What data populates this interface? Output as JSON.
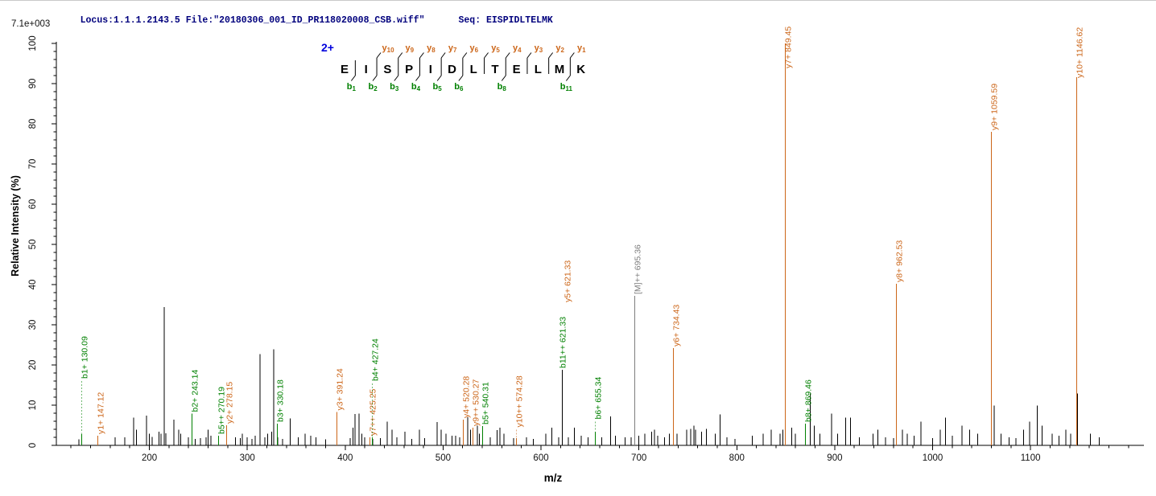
{
  "header": {
    "locus_file": "Locus:1.1.1.2143.5 File:\"20180306_001_ID_PR118020008_CSB.wiff\"",
    "seq": "Seq: EISPIDLTELMK"
  },
  "colors": {
    "y_ion": "#cc6619",
    "b_ion": "#008000",
    "precursor": "#7d7d7d",
    "background_peak": "#000000",
    "axis": "#000000",
    "header_text": "#00007d",
    "charge_label": "#0000dd"
  },
  "sequence_panel": {
    "charge": "2+",
    "residues": [
      "E",
      "I",
      "S",
      "P",
      "I",
      "D",
      "L",
      "T",
      "E",
      "L",
      "M",
      "K"
    ],
    "gaps": [
      {
        "b": "b1",
        "y": null
      },
      {
        "b": "b2",
        "y": "y10"
      },
      {
        "b": "b3",
        "y": "y9"
      },
      {
        "b": "b4",
        "y": "y8"
      },
      {
        "b": "b5",
        "y": "y7"
      },
      {
        "b": "b6",
        "y": "y6"
      },
      {
        "b": null,
        "y": "y5"
      },
      {
        "b": "b8",
        "y": "y4"
      },
      {
        "b": null,
        "y": "y3"
      },
      {
        "b": null,
        "y": "y2"
      },
      {
        "b": "b11",
        "y": "y1"
      }
    ]
  },
  "chart_data": {
    "type": "bar",
    "subtype": "tandem-MS-peptide-fragmentation-spectrum",
    "title": "",
    "xlabel": "m/z",
    "ylabel": "Relative  Intensity (%)",
    "max_intensity_label": "7.1e+003",
    "x_range": [
      105,
      1215
    ],
    "ylim": [
      0,
      100
    ],
    "x_major_ticks": [
      200,
      300,
      400,
      500,
      600,
      700,
      800,
      900,
      1000,
      1100
    ],
    "x_minor_step": 20,
    "y_major_step": 10,
    "y_minor_step": 2,
    "grid": false,
    "legend": "none",
    "labeled_peaks": [
      {
        "label": "b1+ 130.09",
        "ion": "b",
        "mz": 130.09,
        "intensity": 2.9,
        "leader": true,
        "label_from": 16.6
      },
      {
        "label": "y1+ 147.12",
        "ion": "y",
        "mz": 147.12,
        "intensity": 2.4
      },
      {
        "label": "b2+ 243.14",
        "ion": "b",
        "mz": 243.14,
        "intensity": 7.9
      },
      {
        "label": "b5++ 270.19",
        "ion": "b",
        "mz": 270.19,
        "intensity": 2.4
      },
      {
        "label": "y2+ 278.15",
        "ion": "y",
        "mz": 278.15,
        "intensity": 5.0
      },
      {
        "label": "b3+ 330.18",
        "ion": "b",
        "mz": 330.18,
        "intensity": 5.4
      },
      {
        "label": "y3+ 391.24",
        "ion": "y",
        "mz": 391.24,
        "intensity": 8.3
      },
      {
        "label": "y7++ 425.25",
        "ion": "y",
        "mz": 425.25,
        "intensity": 2.0
      },
      {
        "label": "b4+ 427.24",
        "ion": "b",
        "mz": 427.24,
        "intensity": 2.0,
        "leader": true,
        "label_from": 16.0
      },
      {
        "label": "y4+ 520.28",
        "ion": "y",
        "mz": 520.28,
        "intensity": 6.4
      },
      {
        "label": "y9++ 530.27",
        "ion": "y",
        "mz": 530.27,
        "intensity": 4.4
      },
      {
        "label": "b5+ 540.31",
        "ion": "b",
        "mz": 540.31,
        "intensity": 4.8
      },
      {
        "label": "y10++ 574.28",
        "ion": "y",
        "mz": 574.28,
        "intensity": 1.8,
        "leader": true,
        "label_from": 4.5
      },
      {
        "label": "b11++ 621.33",
        "ion": "b",
        "mz": 621.33,
        "intensity": 18.8,
        "stick": "black",
        "dx": -3
      },
      {
        "label": "y5+ 621.33",
        "ion": "y",
        "mz": 621.33,
        "intensity": 18.8,
        "stick": "none",
        "label_from": 35.6,
        "dx": 3
      },
      {
        "label": "b6+ 655.34",
        "ion": "b",
        "mz": 655.34,
        "intensity": 3.4,
        "leader": true,
        "label_from": 6.5
      },
      {
        "label": "[M]++ 695.36",
        "ion": "precursor",
        "mz": 695.36,
        "intensity": 37.2
      },
      {
        "label": "y6+ 734.43",
        "ion": "y",
        "mz": 734.43,
        "intensity": 24.2
      },
      {
        "label": "y7+ 849.45",
        "ion": "y",
        "mz": 849.45,
        "intensity": 100.0
      },
      {
        "label": "b8+ 869.46",
        "ion": "b",
        "mz": 869.46,
        "intensity": 5.4
      },
      {
        "label": "y8+ 962.53",
        "ion": "y",
        "mz": 962.53,
        "intensity": 40.2
      },
      {
        "label": "y9+ 1059.59",
        "ion": "y",
        "mz": 1059.59,
        "intensity": 78.0
      },
      {
        "label": "y10+ 1146.62",
        "ion": "y",
        "mz": 1146.62,
        "intensity": 91.6
      }
    ],
    "background_peaks": [
      [
        128,
        1.5
      ],
      [
        165,
        2
      ],
      [
        175,
        2
      ],
      [
        184,
        6.9
      ],
      [
        187,
        3.9
      ],
      [
        197,
        7.4
      ],
      [
        200,
        2.9
      ],
      [
        203,
        2.1
      ],
      [
        210,
        3.4
      ],
      [
        212,
        2.9
      ],
      [
        215,
        34.4
      ],
      [
        217,
        3
      ],
      [
        225,
        6.4
      ],
      [
        230,
        3.9
      ],
      [
        232,
        2.9
      ],
      [
        240,
        2
      ],
      [
        247,
        1.6
      ],
      [
        252,
        1.8
      ],
      [
        258,
        2
      ],
      [
        260,
        3.9
      ],
      [
        263,
        2.4
      ],
      [
        288,
        2
      ],
      [
        293,
        1.8
      ],
      [
        295,
        2.9
      ],
      [
        300,
        2
      ],
      [
        305,
        1.6
      ],
      [
        308,
        2.4
      ],
      [
        313,
        22.7
      ],
      [
        318,
        2
      ],
      [
        321,
        2.9
      ],
      [
        325,
        3.4
      ],
      [
        327,
        23.9
      ],
      [
        331,
        2
      ],
      [
        336,
        1.6
      ],
      [
        344,
        6.7
      ],
      [
        352,
        2
      ],
      [
        359,
        2.9
      ],
      [
        365,
        2.4
      ],
      [
        370,
        2
      ],
      [
        380,
        1.5
      ],
      [
        405,
        1.8
      ],
      [
        408,
        4.4
      ],
      [
        410,
        7.8
      ],
      [
        414,
        7.9
      ],
      [
        417,
        2.9
      ],
      [
        420,
        2
      ],
      [
        428,
        1.6
      ],
      [
        436,
        1.8
      ],
      [
        443,
        5.9
      ],
      [
        448,
        3.9
      ],
      [
        453,
        2
      ],
      [
        461,
        3.4
      ],
      [
        468,
        1.6
      ],
      [
        476,
        3.9
      ],
      [
        481,
        1.8
      ],
      [
        494,
        5.8
      ],
      [
        498,
        3.9
      ],
      [
        503,
        2.9
      ],
      [
        509,
        2.4
      ],
      [
        513,
        2.4
      ],
      [
        517,
        2
      ],
      [
        525,
        7
      ],
      [
        528,
        3.9
      ],
      [
        535,
        4.9
      ],
      [
        537,
        2.9
      ],
      [
        548,
        2
      ],
      [
        555,
        3.8
      ],
      [
        558,
        4.4
      ],
      [
        562,
        2.9
      ],
      [
        572,
        1.8
      ],
      [
        585,
        2
      ],
      [
        592,
        1.6
      ],
      [
        605,
        2.9
      ],
      [
        611,
        4.4
      ],
      [
        618,
        2
      ],
      [
        628,
        2
      ],
      [
        634,
        4.4
      ],
      [
        641,
        2.4
      ],
      [
        648,
        2
      ],
      [
        662,
        2
      ],
      [
        671,
        7.2
      ],
      [
        676,
        2.4
      ],
      [
        686,
        2
      ],
      [
        692,
        2
      ],
      [
        700,
        2.4
      ],
      [
        706,
        2.9
      ],
      [
        713,
        3.4
      ],
      [
        716,
        3.9
      ],
      [
        719,
        2.4
      ],
      [
        726,
        2
      ],
      [
        731,
        2.9
      ],
      [
        739,
        2.9
      ],
      [
        749,
        3.9
      ],
      [
        753,
        4.1
      ],
      [
        756,
        4.9
      ],
      [
        758,
        3.9
      ],
      [
        764,
        3.4
      ],
      [
        769,
        4.1
      ],
      [
        778,
        2.9
      ],
      [
        783,
        7.7
      ],
      [
        790,
        2
      ],
      [
        798,
        1.6
      ],
      [
        816,
        2.4
      ],
      [
        827,
        2.9
      ],
      [
        835,
        3.9
      ],
      [
        844,
        2.9
      ],
      [
        847,
        3.9
      ],
      [
        856,
        4.4
      ],
      [
        860,
        2.9
      ],
      [
        875,
        12.9
      ],
      [
        879,
        4.9
      ],
      [
        885,
        2.9
      ],
      [
        897,
        7.9
      ],
      [
        903,
        2.9
      ],
      [
        911,
        6.9
      ],
      [
        916,
        6.9
      ],
      [
        925,
        2
      ],
      [
        939,
        2.9
      ],
      [
        944,
        3.9
      ],
      [
        952,
        2
      ],
      [
        960,
        1.8
      ],
      [
        969,
        3.9
      ],
      [
        974,
        2.9
      ],
      [
        981,
        2.4
      ],
      [
        988,
        5.9
      ],
      [
        1000,
        1.8
      ],
      [
        1008,
        3.9
      ],
      [
        1013,
        6.9
      ],
      [
        1020,
        2.4
      ],
      [
        1030,
        4.9
      ],
      [
        1038,
        3.9
      ],
      [
        1046,
        2.9
      ],
      [
        1063,
        9.9
      ],
      [
        1070,
        2.9
      ],
      [
        1078,
        2
      ],
      [
        1085,
        1.8
      ],
      [
        1093,
        3.9
      ],
      [
        1099,
        5.9
      ],
      [
        1107,
        9.9
      ],
      [
        1112,
        4.9
      ],
      [
        1122,
        2.9
      ],
      [
        1129,
        2.4
      ],
      [
        1136,
        3.9
      ],
      [
        1141,
        2.9
      ],
      [
        1148,
        12.9
      ],
      [
        1161,
        2.9
      ],
      [
        1170,
        2
      ]
    ]
  }
}
